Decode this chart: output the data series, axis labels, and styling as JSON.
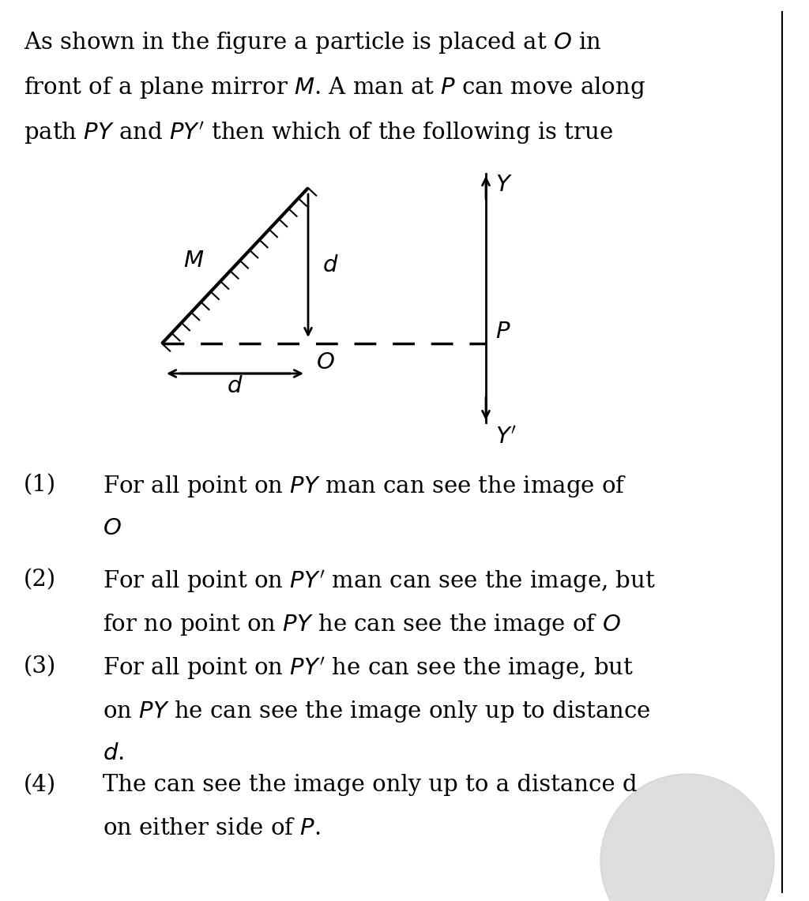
{
  "bg_color": "#ffffff",
  "fig_width": 10.24,
  "fig_height": 11.41,
  "title_lines": [
    "As shown in the figure a particle is placed at $O$ in",
    "front of a plane mirror $M$. A man at $P$ can move along",
    "path $PY$ and $PY'$ then which of the following is true"
  ],
  "option_lines": [
    [
      "(1)",
      "For all point on $PY$ man can see the image of",
      "$O$"
    ],
    [
      "(2)",
      "For all point on $PY'$ man can see the image, but",
      "for no point on $PY$ he can see the image of $O$"
    ],
    [
      "(3)",
      "For all point on $PY'$ he can see the image, but",
      "on $PY$ he can see the image only up to distance",
      "$d$."
    ],
    [
      "(4)",
      "The can see the image only up to a distance d",
      "on either side of $P$."
    ]
  ],
  "text_fontsize": 21,
  "border_color": "#000000",
  "watermark_color": "#c8c8c8",
  "watermark_alpha": 0.6
}
